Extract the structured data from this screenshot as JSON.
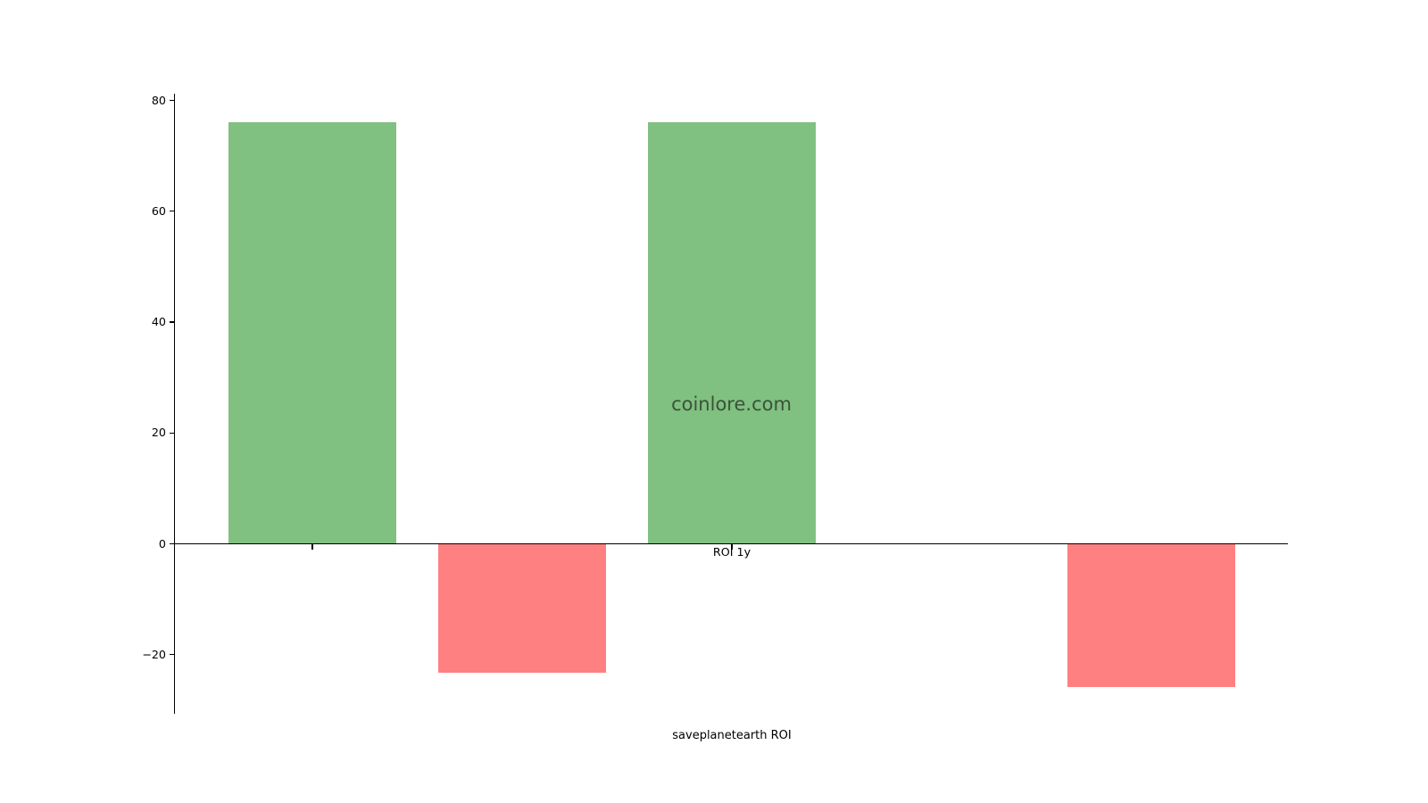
{
  "chart_data": {
    "type": "bar",
    "title": "",
    "xlabel": "saveplanetearth ROI",
    "ylabel": "",
    "watermark": "coinlore.com",
    "categories": [
      "",
      "",
      "ROI 1y",
      "",
      ""
    ],
    "values": [
      76,
      -23.3,
      76,
      0,
      -25.8
    ],
    "yticks": [
      {
        "value": 80,
        "label": "80"
      },
      {
        "value": 60,
        "label": "60"
      },
      {
        "value": 40,
        "label": "40"
      },
      {
        "value": 20,
        "label": "20"
      },
      {
        "value": 0,
        "label": "0"
      },
      {
        "value": -20,
        "label": "−20"
      }
    ],
    "xticks_visible": [
      0,
      2
    ],
    "ylim": [
      -30.6,
      81.2
    ],
    "grid": false,
    "legend": "none",
    "colors": {
      "positive": "#80c080",
      "negative": "#ff8080",
      "axis": "#000000",
      "text": "#000000",
      "watermark": "#3a523a"
    }
  }
}
